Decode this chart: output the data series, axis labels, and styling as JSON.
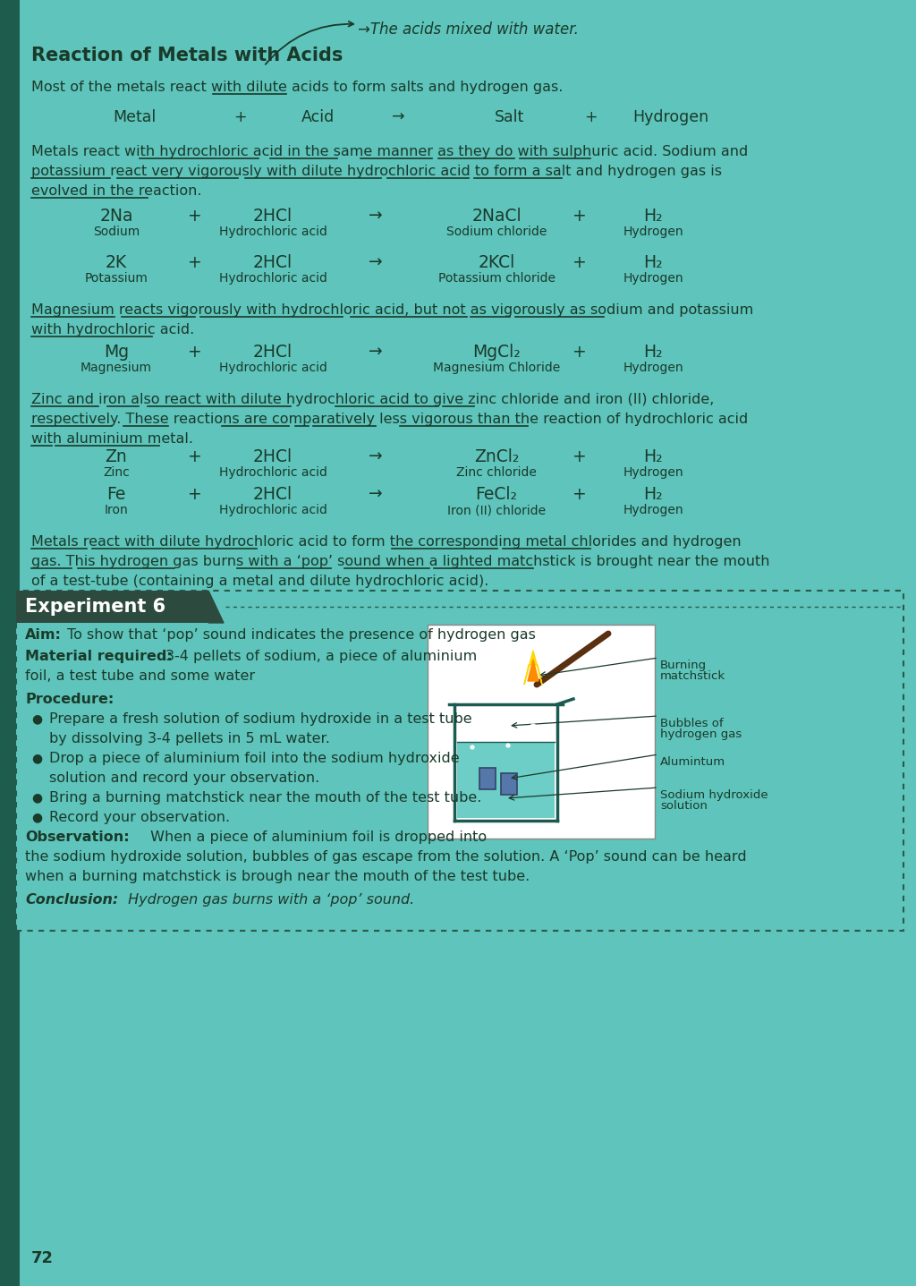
{
  "bg_color": "#5ec4bc",
  "text_color": "#1a3a2a",
  "title": "Reaction of Metals with Acids",
  "handwriting": "→The acids mixed with water.",
  "intro": "Most of the metals react with dilute acids to form salts and hydrogen gas.",
  "general_eq": [
    "Metal",
    "+",
    "Acid",
    "→",
    "Salt",
    "+",
    "Hydrogen"
  ],
  "para1_line1": "Metals react with hydrochloric acid in the same manner as they do with sulphuric acid. Sodium and",
  "para1_line2": "potassium react very vigorously with dilute hydrochloric acid to form a salt and hydrogen gas is",
  "para1_line3": "evolved in the reaction.",
  "eq1": [
    "2Na",
    "+",
    "2HCl",
    "→",
    "2NaCl",
    "+",
    "H₂"
  ],
  "eq1_labels": [
    "Sodium",
    "Hydrochloric acid",
    "Sodium chloride",
    "Hydrogen"
  ],
  "eq2": [
    "2K",
    "+",
    "2HCl",
    "→",
    "2KCl",
    "+",
    "H₂"
  ],
  "eq2_labels": [
    "Potassium",
    "Hydrochloric acid",
    "Potassium chloride",
    "Hydrogen"
  ],
  "para2_line1": "Magnesium reacts vigorously with hydrochloric acid, but not as vigorously as sodium and potassium",
  "para2_line2": "with hydrochloric acid.",
  "eq3": [
    "Mg",
    "+",
    "2HCl",
    "→",
    "MgCl₂",
    "+",
    "H₂"
  ],
  "eq3_labels": [
    "Magnesium",
    "Hydrochloric acid",
    "Magnesium Chloride",
    "Hydrogen"
  ],
  "para3_line1": "Zinc and iron also react with dilute hydrochloric acid to give zinc chloride and iron (II) chloride,",
  "para3_line2": "respectively. These reactions are comparatively less vigorous than the reaction of hydrochloric acid",
  "para3_line3": "with aluminium metal.",
  "eq4": [
    "Zn",
    "+",
    "2HCl",
    "→",
    "ZnCl₂",
    "+",
    "H₂"
  ],
  "eq4_labels": [
    "Zinc",
    "Hydrochloric acid",
    "Zinc chloride",
    "Hydrogen"
  ],
  "eq5": [
    "Fe",
    "+",
    "2HCl",
    "→",
    "FeCl₂",
    "+",
    "H₂"
  ],
  "eq5_labels": [
    "Iron",
    "Hydrochloric acid",
    "Iron (II) chloride",
    "Hydrogen"
  ],
  "para4_line1": "Metals react with dilute hydrochloric acid to form the corresponding metal chlorides and hydrogen",
  "para4_line2": "gas. This hydrogen gas burns with a ‘pop’ sound when a lighted matchstick is brought near the mouth",
  "para4_line3": "of a test-tube (containing a metal and dilute hydrochloric acid).",
  "exp_title": "Experiment 6",
  "exp_aim": "Aim: To show that ‘pop’ sound indicates the presence of hydrogen gas",
  "exp_mat1": "Material required: 3-4 pellets of sodium, a piece of aluminium",
  "exp_mat2": "foil, a test tube and some water",
  "exp_proc": "Procedure:",
  "exp_step1a": "Prepare a fresh solution of sodium hydroxide in a test tube",
  "exp_step1b": "by dissolving 3-4 pellets in 5 mL water.",
  "exp_step2a": "Drop a piece of aluminium foil into the sodium hydroxide",
  "exp_step2b": "solution and record your observation.",
  "exp_step3": "Bring a burning matchstick near the mouth of the test tube.",
  "exp_step4": "Record your observation.",
  "exp_obs_bold": "Observation:",
  "exp_obs1": " When a piece of aluminium foil is dropped into",
  "exp_obs2": "the sodium hydroxide solution, bubbles of gas escape from the solution. A ‘Pop’ sound can be heard",
  "exp_obs3": "when a burning matchstick is brough near the mouth of the test tube.",
  "exp_conc_bold": "Conclusion:",
  "exp_conc": " Hydrogen gas burns with a ‘pop’ sound.",
  "page_num": "72",
  "exp_header_color": "#2d4a3e",
  "diag_label1": "Burning",
  "diag_label1b": "matchstick",
  "diag_label2": "Bubbles of",
  "diag_label2b": "hydrogen gas",
  "diag_label3": "Alumintum",
  "diag_label4": "Sodium hydroxide",
  "diag_label4b": "solution"
}
